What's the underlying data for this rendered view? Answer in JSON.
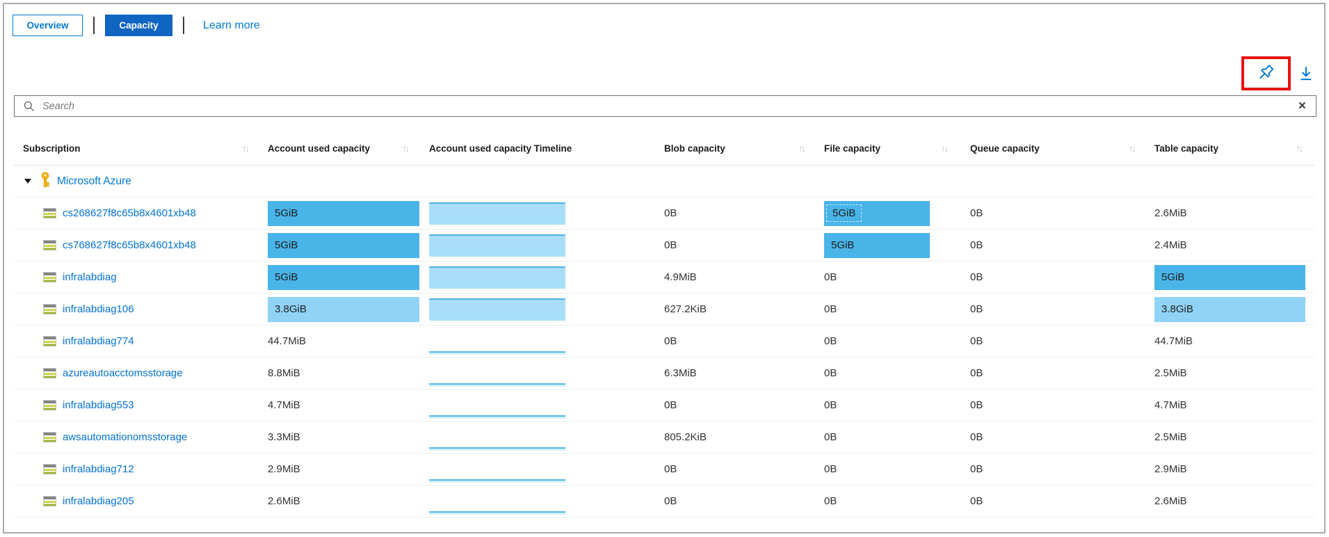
{
  "tabs": {
    "overview_label": "Overview",
    "capacity_label": "Capacity",
    "learn_more_label": "Learn more"
  },
  "toolbar": {
    "pin_icon": "pushpin-icon",
    "download_icon": "download-icon",
    "pin_highlight_color": "#e8100c"
  },
  "search": {
    "placeholder": "Search",
    "clear_glyph": "×"
  },
  "colors": {
    "accent_blue": "#0078d4",
    "capacity_button_bg": "#1064c2",
    "bar_blue": "#49b4e8",
    "bar_light_blue": "#90d3f6",
    "timeline_fill": "#a9def8",
    "timeline_edge": "#4db2e4",
    "highlight_red": "#e8100c"
  },
  "table": {
    "sort_glyph": "↑↓",
    "columns": [
      {
        "label": "Subscription",
        "sortable": true
      },
      {
        "label": "Account used capacity",
        "sortable": true
      },
      {
        "label": "Account used capacity Timeline",
        "sortable": false
      },
      {
        "label": "Blob capacity",
        "sortable": true
      },
      {
        "label": "File capacity",
        "sortable": true
      },
      {
        "label": "Queue capacity",
        "sortable": true
      },
      {
        "label": "Table capacity",
        "sortable": true
      }
    ],
    "group": {
      "label": "Microsoft Azure",
      "icon": "key-icon",
      "expanded": true
    },
    "rows": [
      {
        "subscription": "cs268627f8c65b8x4601xb48",
        "account": {
          "value": "5GiB",
          "bar": "blue"
        },
        "timeline": "full",
        "blob": "0B",
        "file": {
          "value": "5GiB",
          "bar": "blue",
          "focused": true
        },
        "queue": "0B",
        "table_cap": {
          "value": "2.6MiB",
          "bar": null
        }
      },
      {
        "subscription": "cs768627f8c65b8x4601xb48",
        "account": {
          "value": "5GiB",
          "bar": "blue"
        },
        "timeline": "full",
        "blob": "0B",
        "file": {
          "value": "5GiB",
          "bar": "blue"
        },
        "queue": "0B",
        "table_cap": {
          "value": "2.4MiB",
          "bar": null
        }
      },
      {
        "subscription": "infralabdiag",
        "account": {
          "value": "5GiB",
          "bar": "blue"
        },
        "timeline": "full",
        "blob": "4.9MiB",
        "file": {
          "value": "0B",
          "bar": null
        },
        "queue": "0B",
        "table_cap": {
          "value": "5GiB",
          "bar": "blue"
        }
      },
      {
        "subscription": "infralabdiag106",
        "account": {
          "value": "3.8GiB",
          "bar": "light"
        },
        "timeline": "full",
        "blob": "627.2KiB",
        "file": {
          "value": "0B",
          "bar": null
        },
        "queue": "0B",
        "table_cap": {
          "value": "3.8GiB",
          "bar": "light"
        }
      },
      {
        "subscription": "infralabdiag774",
        "account": {
          "value": "44.7MiB",
          "bar": null
        },
        "timeline": "line",
        "blob": "0B",
        "file": {
          "value": "0B",
          "bar": null
        },
        "queue": "0B",
        "table_cap": {
          "value": "44.7MiB",
          "bar": null
        }
      },
      {
        "subscription": "azureautoacctomsstorage",
        "account": {
          "value": "8.8MiB",
          "bar": null
        },
        "timeline": "line",
        "blob": "6.3MiB",
        "file": {
          "value": "0B",
          "bar": null
        },
        "queue": "0B",
        "table_cap": {
          "value": "2.5MiB",
          "bar": null
        }
      },
      {
        "subscription": "infralabdiag553",
        "account": {
          "value": "4.7MiB",
          "bar": null
        },
        "timeline": "line",
        "blob": "0B",
        "file": {
          "value": "0B",
          "bar": null
        },
        "queue": "0B",
        "table_cap": {
          "value": "4.7MiB",
          "bar": null
        }
      },
      {
        "subscription": "awsautomationomsstorage",
        "account": {
          "value": "3.3MiB",
          "bar": null
        },
        "timeline": "line",
        "blob": "805.2KiB",
        "file": {
          "value": "0B",
          "bar": null
        },
        "queue": "0B",
        "table_cap": {
          "value": "2.5MiB",
          "bar": null
        }
      },
      {
        "subscription": "infralabdiag712",
        "account": {
          "value": "2.9MiB",
          "bar": null
        },
        "timeline": "line",
        "blob": "0B",
        "file": {
          "value": "0B",
          "bar": null
        },
        "queue": "0B",
        "table_cap": {
          "value": "2.9MiB",
          "bar": null
        }
      },
      {
        "subscription": "infralabdiag205",
        "account": {
          "value": "2.6MiB",
          "bar": null
        },
        "timeline": "line",
        "blob": "0B",
        "file": {
          "value": "0B",
          "bar": null
        },
        "queue": "0B",
        "table_cap": {
          "value": "2.6MiB",
          "bar": null
        }
      }
    ]
  }
}
